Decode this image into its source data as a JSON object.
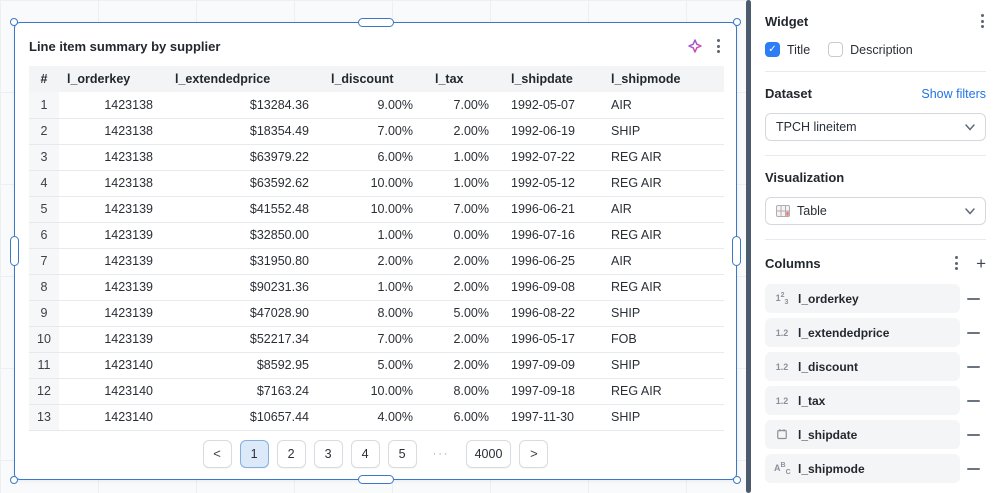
{
  "widget": {
    "title": "Line item summary by supplier",
    "table": {
      "columns": [
        "#",
        "l_orderkey",
        "l_extendedprice",
        "l_discount",
        "l_tax",
        "l_shipdate",
        "l_shipmode"
      ],
      "rows": [
        [
          "1",
          "1423138",
          "$13284.36",
          "9.00%",
          "7.00%",
          "1992-05-07",
          "AIR"
        ],
        [
          "2",
          "1423138",
          "$18354.49",
          "7.00%",
          "2.00%",
          "1992-06-19",
          "SHIP"
        ],
        [
          "3",
          "1423138",
          "$63979.22",
          "6.00%",
          "1.00%",
          "1992-07-22",
          "REG AIR"
        ],
        [
          "4",
          "1423138",
          "$63592.62",
          "10.00%",
          "1.00%",
          "1992-05-12",
          "REG AIR"
        ],
        [
          "5",
          "1423139",
          "$41552.48",
          "10.00%",
          "7.00%",
          "1996-06-21",
          "AIR"
        ],
        [
          "6",
          "1423139",
          "$32850.00",
          "1.00%",
          "0.00%",
          "1996-07-16",
          "REG AIR"
        ],
        [
          "7",
          "1423139",
          "$31950.80",
          "2.00%",
          "2.00%",
          "1996-06-25",
          "AIR"
        ],
        [
          "8",
          "1423139",
          "$90231.36",
          "1.00%",
          "2.00%",
          "1996-09-08",
          "REG AIR"
        ],
        [
          "9",
          "1423139",
          "$47028.90",
          "8.00%",
          "5.00%",
          "1996-08-22",
          "SHIP"
        ],
        [
          "10",
          "1423139",
          "$52217.34",
          "7.00%",
          "2.00%",
          "1996-05-17",
          "FOB"
        ],
        [
          "11",
          "1423140",
          "$8592.95",
          "5.00%",
          "2.00%",
          "1997-09-09",
          "SHIP"
        ],
        [
          "12",
          "1423140",
          "$7163.24",
          "10.00%",
          "8.00%",
          "1997-09-18",
          "REG AIR"
        ],
        [
          "13",
          "1423140",
          "$10657.44",
          "4.00%",
          "6.00%",
          "1997-11-30",
          "SHIP"
        ]
      ]
    },
    "pagination": {
      "prev_label": "<",
      "next_label": ">",
      "pages": [
        "1",
        "2",
        "3",
        "4",
        "5",
        "···",
        "4000"
      ],
      "active": "1",
      "ellipsis": "···"
    }
  },
  "panel": {
    "widget_section": {
      "title": "Widget",
      "title_checkbox": "Title",
      "title_checked": true,
      "description_checkbox": "Description",
      "description_checked": false
    },
    "dataset_section": {
      "title": "Dataset",
      "link": "Show filters",
      "selected": "TPCH lineitem"
    },
    "visualization_section": {
      "title": "Visualization",
      "selected": "Table",
      "icon": "table-icon"
    },
    "columns_section": {
      "title": "Columns",
      "items": [
        {
          "icon": "number-icon",
          "label": "l_orderkey"
        },
        {
          "icon": "decimal-icon",
          "label": "l_extendedprice"
        },
        {
          "icon": "decimal-icon",
          "label": "l_discount"
        },
        {
          "icon": "decimal-icon",
          "label": "l_tax"
        },
        {
          "icon": "calendar-icon",
          "label": "l_shipdate"
        },
        {
          "icon": "text-icon",
          "label": "l_shipmode"
        }
      ]
    }
  },
  "colors": {
    "selection_blue": "#3b78c8",
    "checkbox_blue": "#2d7df7",
    "link_blue": "#2173e8",
    "active_page_bg": "#dce9f8",
    "panel_divider": "#4b5a6d",
    "sparkle_gradient_start": "#7a5cf5",
    "sparkle_gradient_end": "#ef3e8f"
  }
}
